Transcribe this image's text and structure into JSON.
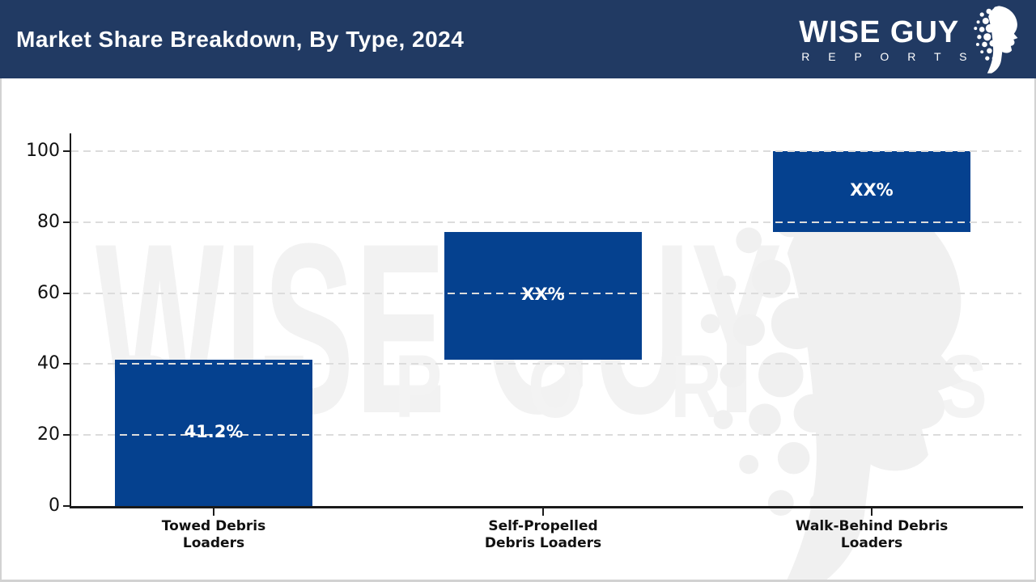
{
  "header": {
    "title": "Market Share Breakdown, By Type, 2024",
    "background_color": "#213a63",
    "logo": {
      "wordmark": "WISE GUY",
      "reports": "R E P O R T S"
    }
  },
  "watermark": {
    "wordmark": "WISE GUY",
    "reports": "R E P O R T S"
  },
  "chart_data": {
    "type": "bar",
    "subtype": "waterfall",
    "title": "Market Share Breakdown, By Type, 2024",
    "categories": [
      "Towed Debris Loaders",
      "Self-Propelled Debris Loaders",
      "Walk-Behind Debris Loaders"
    ],
    "category_label_lines": [
      [
        "Towed Debris",
        "Loaders"
      ],
      [
        "Self-Propelled",
        "Debris Loaders"
      ],
      [
        "Walk-Behind Debris",
        "Loaders"
      ]
    ],
    "values": [
      41.2,
      36.0,
      22.8
    ],
    "cumulative_segments": [
      {
        "start": 0,
        "end": 41.2
      },
      {
        "start": 41.2,
        "end": 77.2
      },
      {
        "start": 77.2,
        "end": 100
      }
    ],
    "bar_labels": [
      "41.2%",
      "XX%",
      "XX%"
    ],
    "xlabel": "",
    "ylabel": "",
    "ylim": [
      0,
      100
    ],
    "yticks": [
      0,
      20,
      40,
      60,
      80,
      100
    ],
    "grid": "horizontal-dashed",
    "legend": "none",
    "bar_color": "#05418f",
    "bar_label_color": "#ffffff",
    "gridline_color": "#dcdcdc",
    "axis_color": "#1a1a1a"
  }
}
